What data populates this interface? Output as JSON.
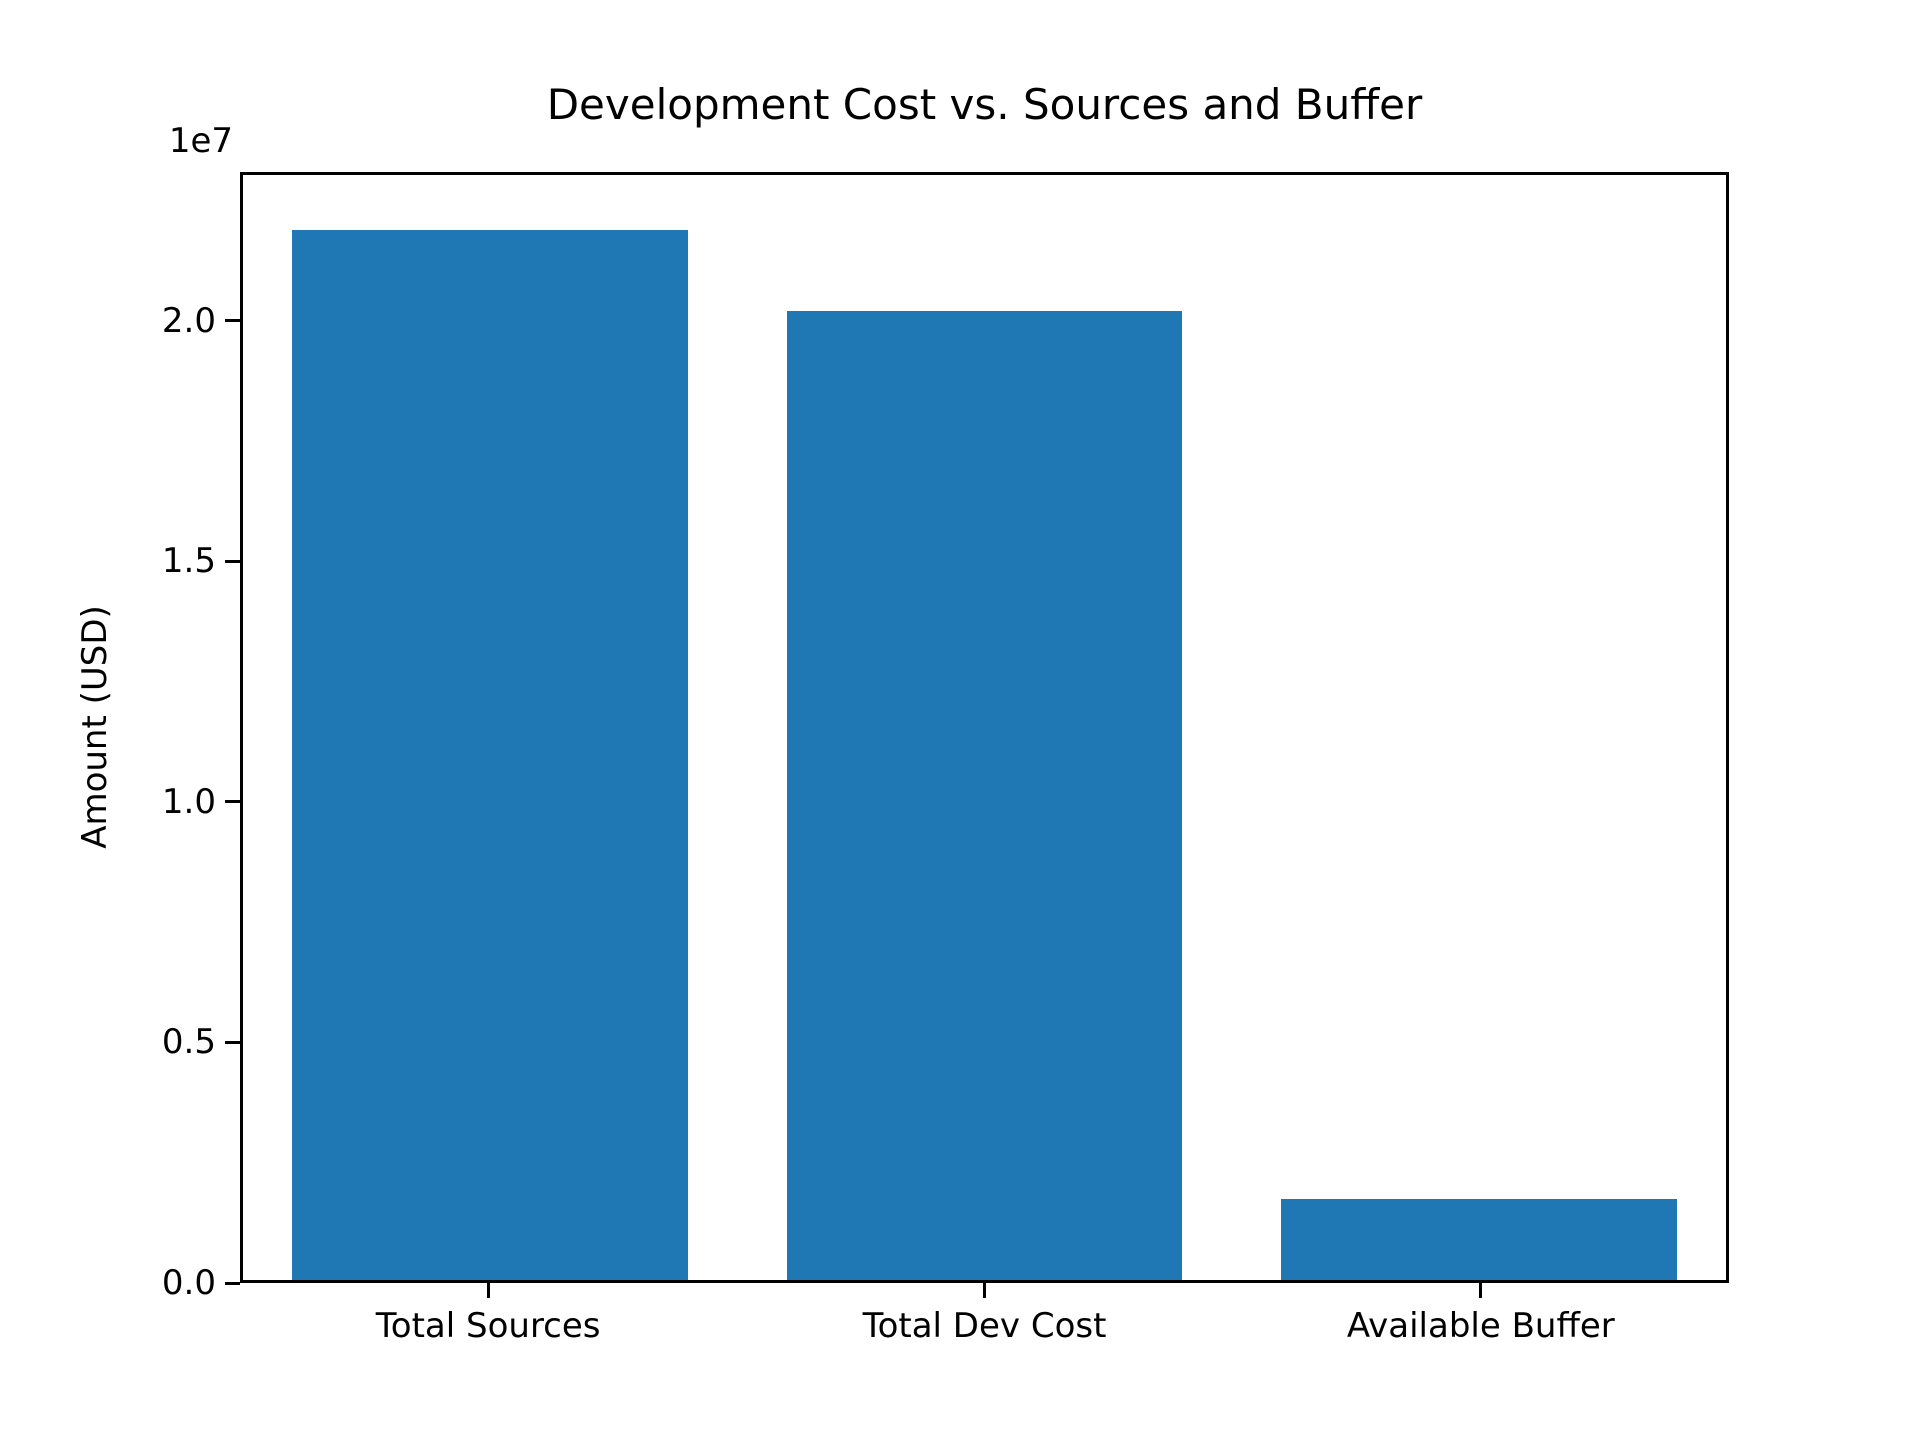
{
  "chart_data": {
    "type": "bar",
    "title": "Development Cost vs. Sources and Buffer",
    "xlabel": "",
    "ylabel": "Amount (USD)",
    "offset_label": "1e7",
    "categories": [
      "Total Sources",
      "Total Dev Cost",
      "Available Buffer"
    ],
    "values": [
      21950000,
      20250000,
      1700000
    ],
    "ylim": [
      0,
      23090000
    ],
    "yticks": [
      {
        "label": "0.0",
        "value": 0
      },
      {
        "label": "0.5",
        "value": 5000000
      },
      {
        "label": "1.0",
        "value": 10000000
      },
      {
        "label": "1.5",
        "value": 15000000
      },
      {
        "label": "2.0",
        "value": 20000000
      }
    ],
    "bar_color": "#1f77b4",
    "axis_color": "#000000",
    "background_color": "#ffffff",
    "grid": false,
    "legend": null
  }
}
